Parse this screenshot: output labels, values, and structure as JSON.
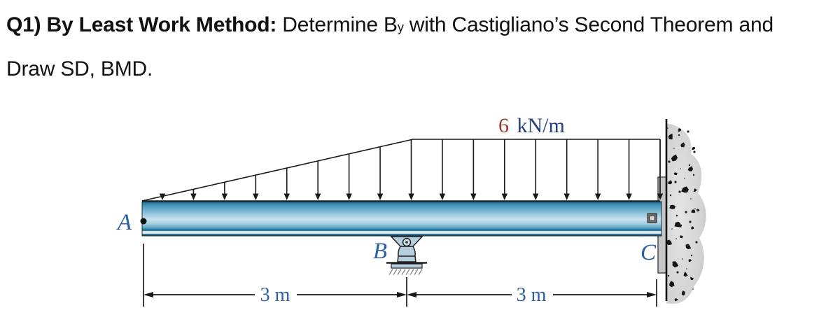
{
  "title": {
    "q_bold": "Q1) By Least Work Method:",
    "before_sub": " Determine B",
    "sub": "y",
    "after_sub": " with Castigliano’s Second Theorem and",
    "line2": "Draw SD, BMD."
  },
  "diagram": {
    "load_value": "6",
    "load_unit": "kN/m",
    "label_a": "A",
    "label_b": "B",
    "label_c": "C",
    "dim_left": "3 m",
    "dim_right": "3 m",
    "colors": {
      "label_blue": "#2d5fa6",
      "load_red": "#a03a2c",
      "unit_navy": "#243f7a",
      "beam_dark": "#0f5876",
      "beam_mid": "#4f9dc0",
      "beam_light": "#c8e2ee",
      "support_fill": "#b5cedd",
      "concrete_gray": "#d4d4d4",
      "line_black": "#1a1a1a"
    }
  }
}
